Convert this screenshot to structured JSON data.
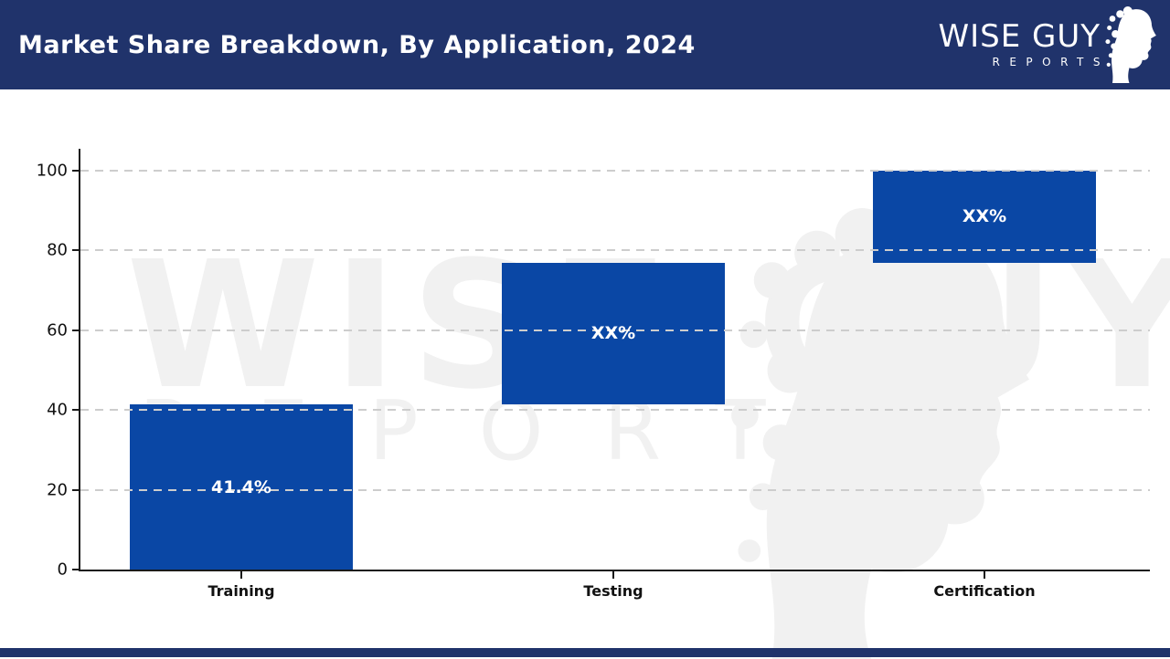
{
  "header": {
    "title": "Market Share Breakdown, By Application, 2024",
    "bg_color": "#20336b",
    "text_color": "#ffffff",
    "logo": {
      "line1": "WISE GUY",
      "line2": "REPORTS"
    }
  },
  "watermark": {
    "line1": "WISE GUY",
    "line2": "REPORTS",
    "color": "#f1f1f1"
  },
  "chart_data": {
    "type": "bar",
    "subtype": "waterfall",
    "title": "Market Share Breakdown, By Application, 2024",
    "categories": [
      "Training",
      "Testing",
      "Certification"
    ],
    "segments": [
      {
        "category": "Training",
        "start": 0,
        "end": 41.4,
        "label": "41.4%"
      },
      {
        "category": "Testing",
        "start": 41.4,
        "end": 77,
        "label": "XX%"
      },
      {
        "category": "Certification",
        "start": 77,
        "end": 100,
        "label": "XX%"
      }
    ],
    "ylim": [
      0,
      100
    ],
    "yticks": [
      0,
      20,
      40,
      60,
      80,
      100
    ],
    "grid": "horizontal dashed",
    "legend": "none",
    "bar_color": "#0a47a5",
    "value_label_color": "#ffffff",
    "axis_color": "#1a1a1a",
    "gridline_color": "#cdcdcd"
  },
  "footer": {
    "bg_color": "#20336b"
  }
}
